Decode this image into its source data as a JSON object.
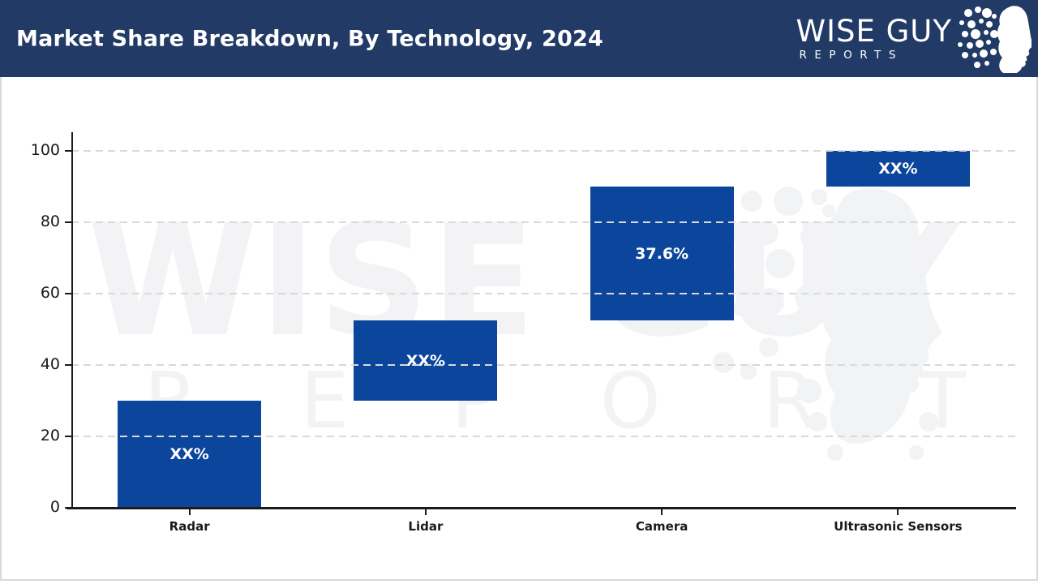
{
  "header": {
    "title": "Market Share Breakdown, By Technology, 2024",
    "logo": {
      "line1": "WISE GUY",
      "line2": "REPORTS"
    }
  },
  "watermark": {
    "line1": "WISE GUY",
    "line2": "R E P O R T S"
  },
  "chart_data": {
    "type": "bar",
    "subtype": "floating-segment (waterfall-style market share breakdown)",
    "title": "Market Share Breakdown, By Technology, 2024",
    "categories": [
      "Radar",
      "Lidar",
      "Camera",
      "Ultrasonic Sensors"
    ],
    "segments": [
      {
        "category": "Radar",
        "start": 0,
        "end": 30,
        "label": "XX%"
      },
      {
        "category": "Lidar",
        "start": 30,
        "end": 52.4,
        "label": "XX%"
      },
      {
        "category": "Camera",
        "start": 52.4,
        "end": 90,
        "label": "37.6%"
      },
      {
        "category": "Ultrasonic Sensors",
        "start": 90,
        "end": 100,
        "label": "XX%"
      }
    ],
    "xlabel": "",
    "ylabel": "",
    "ylim": [
      0,
      105
    ],
    "yticks": [
      0,
      20,
      40,
      60,
      80,
      100
    ],
    "grid": "horizontal-dashed, drawn above bars",
    "legend": "none",
    "colors": {
      "bar": "#0C459C",
      "bar_label": "#ffffff",
      "axis": "#1a1a1a",
      "grid": "#d9d9d9",
      "header_bg": "#223A66",
      "header_text": "#ffffff",
      "watermark": "#f3f3f5"
    }
  }
}
